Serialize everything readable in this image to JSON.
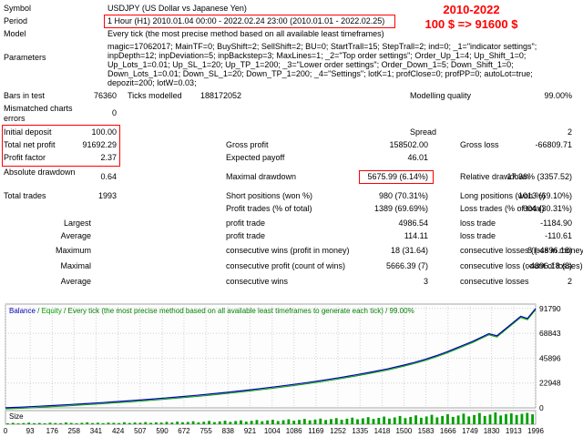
{
  "annotation": {
    "years": "2010-2022",
    "result": "100 $ => 91600 $",
    "color": "#ff0000"
  },
  "report": {
    "symbol": {
      "label": "Symbol",
      "value": "USDJPY (US Dollar vs Japanese Yen)"
    },
    "period": {
      "label": "Period",
      "value": "1 Hour (H1) 2010.01.04 00:00 - 2022.02.24 23:00 (2010.01.01 - 2022.02.25)"
    },
    "model": {
      "label": "Model",
      "value": "Every tick (the most precise method based on all available least timeframes)"
    },
    "parameters": {
      "label": "Parameters",
      "value": "magic=17062017; MainTF=0; BuyShift=2; SellShift=2; BU=0; StartTrall=15; StepTrall=2; ind=0; _1=\"indicator settings\"; inpDepth=12; inpDeviation=5; inpBackstep=3; MaxLines=1; _2=\"Top order settings\"; Order_Up_1=4; Up_Shift_1=0; Up_Lots_1=0.01; Up_SL_1=20; Up_TP_1=200; _3=\"Lower order settings\"; Order_Down_1=5; Down_Shift_1=0; Down_Lots_1=0.01; Down_SL_1=20; Down_TP_1=200; _4=\"Settings\"; lotK=1; profClose=0; profPP=0; autoLot=true; depozit=200; lotW=0.03;"
    },
    "bars": {
      "label": "Bars in test",
      "value": "76360",
      "ticks_label": "Ticks modelled",
      "ticks_value": "188172052",
      "quality_label": "Modelling quality",
      "quality_value": "99.00%"
    },
    "mismatch": {
      "label": "Mismatched charts errors",
      "value": "0"
    },
    "deposit": {
      "label": "Initial deposit",
      "value": "100.00",
      "spread_label": "Spread",
      "spread_value": "2"
    },
    "net_profit": {
      "label": "Total net profit",
      "value": "91692.29",
      "gross_profit_label": "Gross profit",
      "gross_profit_value": "158502.00",
      "gross_loss_label": "Gross loss",
      "gross_loss_value": "-66809.71"
    },
    "profit_factor": {
      "label": "Profit factor",
      "value": "2.37",
      "payoff_label": "Expected payoff",
      "payoff_value": "46.01"
    },
    "drawdown": {
      "label": "Absolute drawdown",
      "value": "0.64",
      "maximal_label": "Maximal drawdown",
      "maximal_value": "5675.99 (6.14%)",
      "relative_label": "Relative drawdown",
      "relative_value": "17.36% (3357.52)"
    },
    "trades": {
      "label": "Total trades",
      "value": "1993",
      "short_label": "Short positions (won %)",
      "short_value": "980 (70.31%)",
      "long_label": "Long positions (won %)",
      "long_value": "1013 (69.10%)"
    },
    "trades2": {
      "profit_label": "Profit trades (% of total)",
      "profit_value": "1389 (69.69%)",
      "loss_label": "Loss trades (% of total)",
      "loss_value": "604 (30.31%)"
    },
    "largest": {
      "label": "Largest",
      "profit_label": "profit trade",
      "profit_value": "4986.54",
      "loss_label": "loss trade",
      "loss_value": "-1184.90"
    },
    "average": {
      "label": "Average",
      "profit_label": "profit trade",
      "profit_value": "114.11",
      "loss_label": "loss trade",
      "loss_value": "-110.61"
    },
    "maximum": {
      "label": "Maximum",
      "win_label": "consecutive wins (profit in money)",
      "win_value": "18 (31.64)",
      "loss_label": "consecutive losses (loss in money)",
      "loss_value": "8 (-4896.18)"
    },
    "maximal": {
      "label": "Maximal",
      "win_label": "consecutive profit (count of wins)",
      "win_value": "5666.39 (7)",
      "loss_label": "consecutive loss (count of losses)",
      "loss_value": "-4896.18 (8)"
    },
    "avg_consec": {
      "label": "Average",
      "win_label": "consecutive wins",
      "win_value": "3",
      "loss_label": "consecutive losses",
      "loss_value": "2"
    }
  },
  "chart_data": {
    "type": "line",
    "title": "Balance / Equity / Every tick (the most precise method based on all available least timeframes to generate each tick) / 99.00%",
    "legend": {
      "balance": "Balance",
      "equity": "Equity",
      "method": "Every tick (the most precise method based on all available least timeframes to generate each tick)",
      "quality": "99.00%"
    },
    "xlim": [
      0,
      1996
    ],
    "ylim": [
      0,
      95800
    ],
    "y_ticks": [
      91790,
      68843,
      45896,
      22948
    ],
    "y_zero_label": "0",
    "x_ticks": [
      0,
      93,
      176,
      258,
      341,
      424,
      507,
      590,
      672,
      755,
      838,
      921,
      1004,
      1086,
      1169,
      1252,
      1335,
      1418,
      1500,
      1583,
      1666,
      1749,
      1830,
      1913,
      1996
    ],
    "x": [
      0,
      60,
      120,
      180,
      240,
      300,
      360,
      420,
      480,
      540,
      600,
      660,
      720,
      780,
      840,
      900,
      960,
      1020,
      1080,
      1140,
      1200,
      1260,
      1320,
      1380,
      1440,
      1500,
      1540,
      1580,
      1620,
      1660,
      1700,
      1730,
      1760,
      1790,
      1820,
      1850,
      1880,
      1910,
      1940,
      1965,
      1996
    ],
    "balance": [
      100,
      700,
      1400,
      2200,
      3000,
      3900,
      4800,
      5800,
      6800,
      7900,
      9100,
      10300,
      11600,
      13000,
      14500,
      16100,
      17800,
      19600,
      21500,
      23500,
      25700,
      28000,
      30500,
      33200,
      36100,
      39500,
      42000,
      44800,
      48000,
      51500,
      55500,
      58500,
      61500,
      65000,
      68500,
      66500,
      72500,
      78500,
      84500,
      82500,
      91692
    ],
    "series": [
      {
        "name": "Equity",
        "color": "#00a000"
      },
      {
        "name": "Balance",
        "color": "#0000b4"
      }
    ],
    "grid_color": "#d0d0d0",
    "size_panel": {
      "label": "Size",
      "color": "#00a000",
      "values": [
        0.08,
        0.12,
        0.07,
        0.1,
        0.14,
        0.09,
        0.11,
        0.08,
        0.13,
        0.1,
        0.09,
        0.15,
        0.11,
        0.08,
        0.12,
        0.16,
        0.1,
        0.13,
        0.09,
        0.14,
        0.12,
        0.1,
        0.17,
        0.11,
        0.15,
        0.13,
        0.18,
        0.12,
        0.16,
        0.14,
        0.2,
        0.15,
        0.22,
        0.17,
        0.19,
        0.25,
        0.16,
        0.21,
        0.28,
        0.18,
        0.24,
        0.3,
        0.2,
        0.27,
        0.33,
        0.22,
        0.29,
        0.36,
        0.25,
        0.32,
        0.38,
        0.27,
        0.34,
        0.42,
        0.3,
        0.37,
        0.45,
        0.33,
        0.4,
        0.48,
        0.36,
        0.44,
        0.52,
        0.38,
        0.47,
        0.56,
        0.42,
        0.5,
        0.6,
        0.45,
        0.54,
        0.65,
        0.48,
        0.58,
        0.7,
        0.52,
        0.62,
        0.75,
        0.55,
        0.66,
        0.8,
        0.58,
        0.7,
        0.85,
        0.62,
        0.74,
        0.9,
        0.66,
        0.78,
        0.95,
        0.7,
        0.82,
        1.0,
        0.74,
        0.86,
        0.92,
        0.78,
        0.88,
        0.96,
        0.84
      ]
    }
  }
}
